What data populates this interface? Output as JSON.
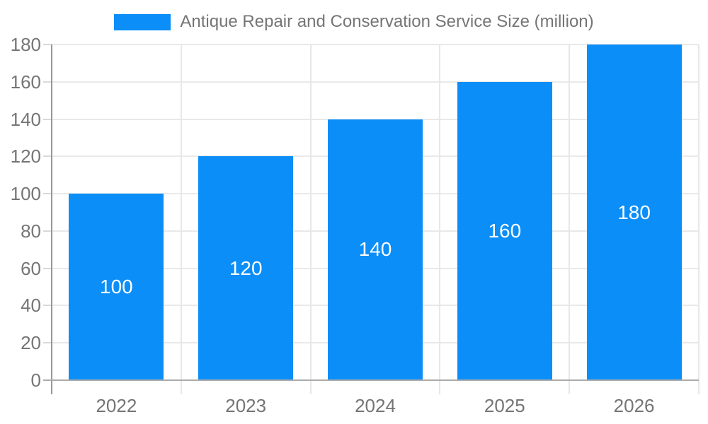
{
  "chart_data": {
    "type": "bar",
    "title": "Antique Repair and Conservation Service Size (million)",
    "categories": [
      "2022",
      "2023",
      "2024",
      "2025",
      "2026"
    ],
    "values": [
      100,
      120,
      140,
      160,
      180
    ],
    "series": [
      {
        "name": "Antique Repair and Conservation Service Size (million)",
        "values": [
          100,
          120,
          140,
          160,
          180
        ]
      }
    ],
    "yticks": [
      0,
      20,
      40,
      60,
      80,
      100,
      120,
      140,
      160,
      180
    ],
    "ylim": [
      0,
      180
    ],
    "xlabel": "",
    "ylabel": "",
    "grid": true,
    "legend_position": "top",
    "value_labels_inside_bars": true,
    "colors": {
      "bar": "#0B8EF8",
      "axis_text": "#757575",
      "bar_label_text": "#ffffff",
      "gridline": "#e9e9e9",
      "axis_line": "#979797"
    }
  }
}
